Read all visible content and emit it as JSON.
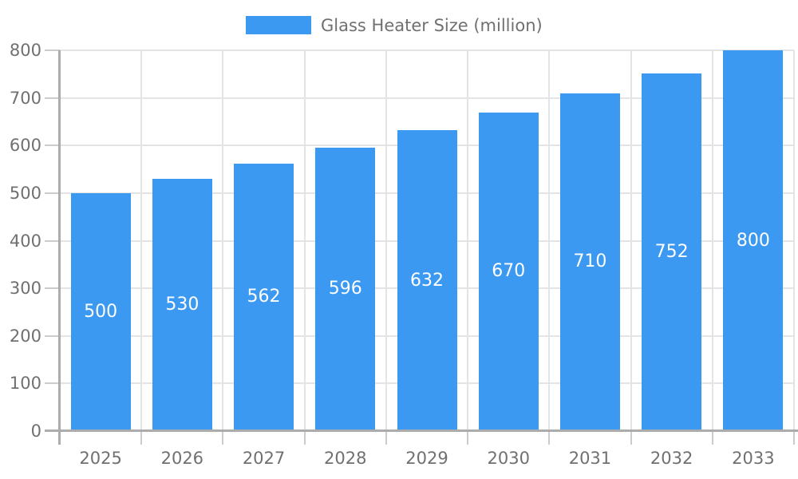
{
  "chart_data": {
    "type": "bar",
    "title": "Glass Heater Size (million)",
    "categories": [
      "2025",
      "2026",
      "2027",
      "2028",
      "2029",
      "2030",
      "2031",
      "2032",
      "2033"
    ],
    "values": [
      500,
      530,
      562,
      596,
      632,
      670,
      710,
      752,
      800
    ],
    "xlabel": "",
    "ylabel": "",
    "ylim": [
      0,
      800
    ],
    "ytick_step": 100,
    "yticks": [
      0,
      100,
      200,
      300,
      400,
      500,
      600,
      700,
      800
    ],
    "grid": true,
    "legend_position": "top",
    "legend_entries": [
      "Glass Heater Size (million)"
    ],
    "bar_value_labels": [
      500,
      530,
      562,
      596,
      632,
      670,
      710,
      752,
      800
    ]
  },
  "colors": {
    "bar": "#3B99F2",
    "bar_label_text": "#FFFFFF",
    "axis_line": "#ACACAC",
    "tick_line": "#CCCCCC",
    "grid_line": "#E4E4E4",
    "axis_text": "#707070",
    "background": "#FFFFFF"
  }
}
